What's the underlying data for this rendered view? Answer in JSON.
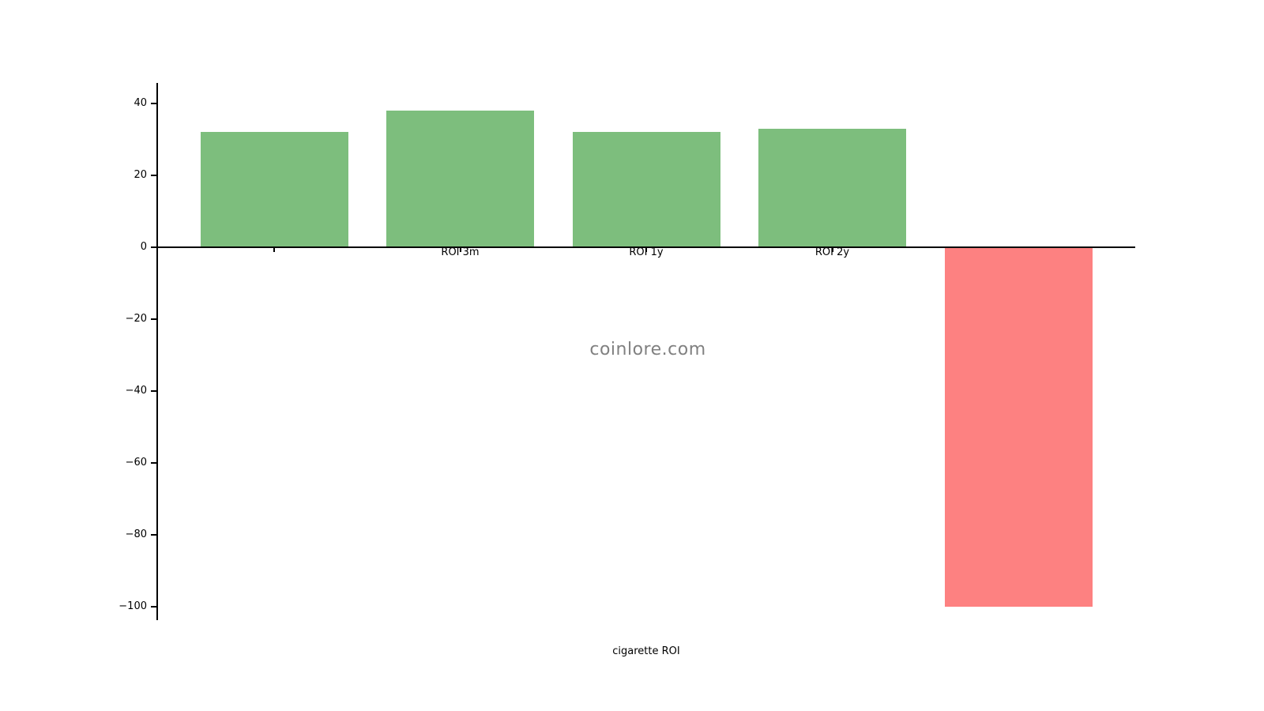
{
  "chart_data": {
    "type": "bar",
    "title": "",
    "xlabel": "cigarette ROI",
    "ylabel": "",
    "categories": [
      "",
      "ROI 3m",
      "ROI 1y",
      "ROI 2y",
      ""
    ],
    "values": [
      32,
      38,
      32,
      33,
      -100
    ],
    "bar_colors": [
      "#7dbe7d",
      "#7dbe7d",
      "#7dbe7d",
      "#7dbe7d",
      "#fd8181"
    ],
    "positive_color": "#7dbe7d",
    "negative_color": "#fd8181",
    "yticks": [
      40,
      20,
      0,
      -20,
      -40,
      -60,
      -80,
      -100
    ],
    "ytick_labels": [
      "40",
      "20",
      "0",
      "−20",
      "−40",
      "−60",
      "−80",
      "−100"
    ],
    "ylim": [
      -104,
      46
    ],
    "grid": false,
    "legend": null,
    "axis_color": "#000000",
    "watermark": "coinlore.com",
    "watermark_color": "#808080"
  }
}
